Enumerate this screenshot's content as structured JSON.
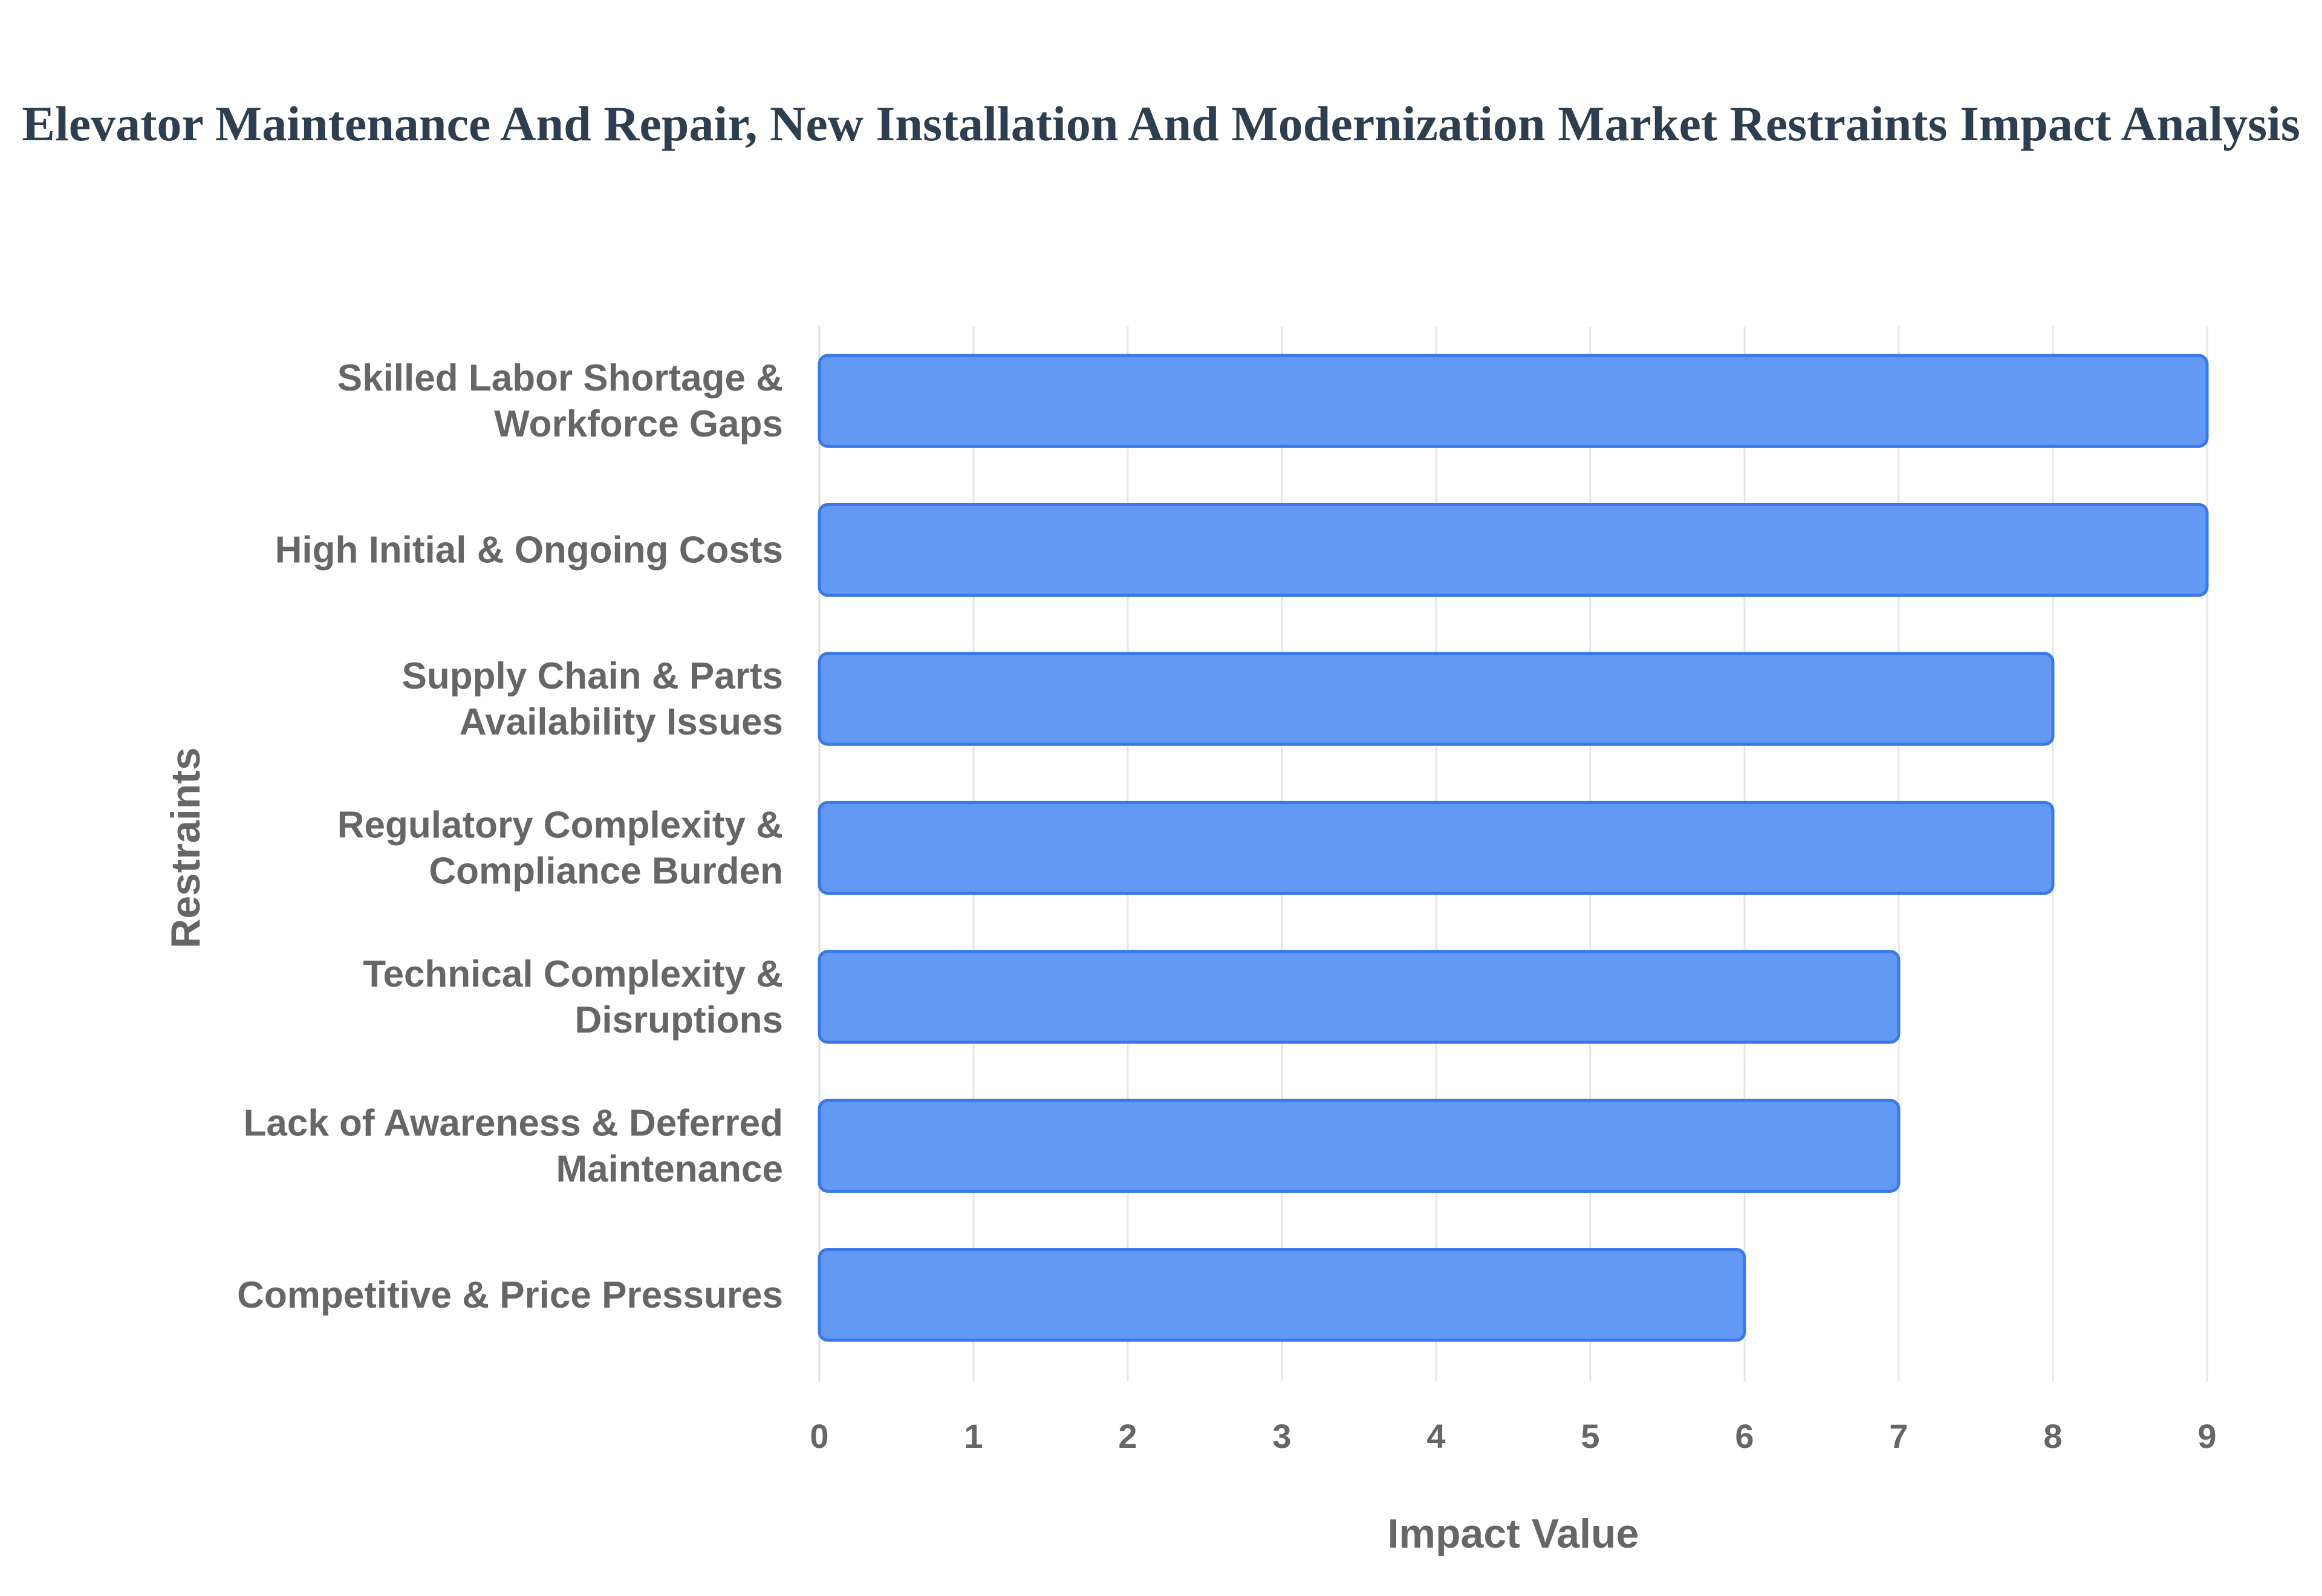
{
  "title": "Elevator Maintenance And Repair, New Installation And Modernization Market Restraints Impact Analysis",
  "chart_data": {
    "type": "bar",
    "orientation": "horizontal",
    "categories": [
      [
        "Skilled Labor Shortage &",
        "Workforce Gaps"
      ],
      [
        "High Initial & Ongoing Costs"
      ],
      [
        "Supply Chain & Parts",
        "Availability Issues"
      ],
      [
        "Regulatory Complexity &",
        "Compliance Burden"
      ],
      [
        "Technical Complexity &",
        "Disruptions"
      ],
      [
        "Lack of Awareness & Deferred",
        "Maintenance"
      ],
      [
        "Competitive & Price Pressures"
      ]
    ],
    "values": [
      9,
      9,
      8,
      8,
      7,
      7,
      6
    ],
    "xlabel": "Impact Value",
    "ylabel": "Restraints",
    "xlim": [
      0,
      9
    ],
    "xticks": [
      "0",
      "1",
      "2",
      "3",
      "4",
      "5",
      "6",
      "7",
      "8",
      "9"
    ],
    "grid": true,
    "bar_color": "#6399f5",
    "bar_edge_color": "#3a78e8"
  }
}
